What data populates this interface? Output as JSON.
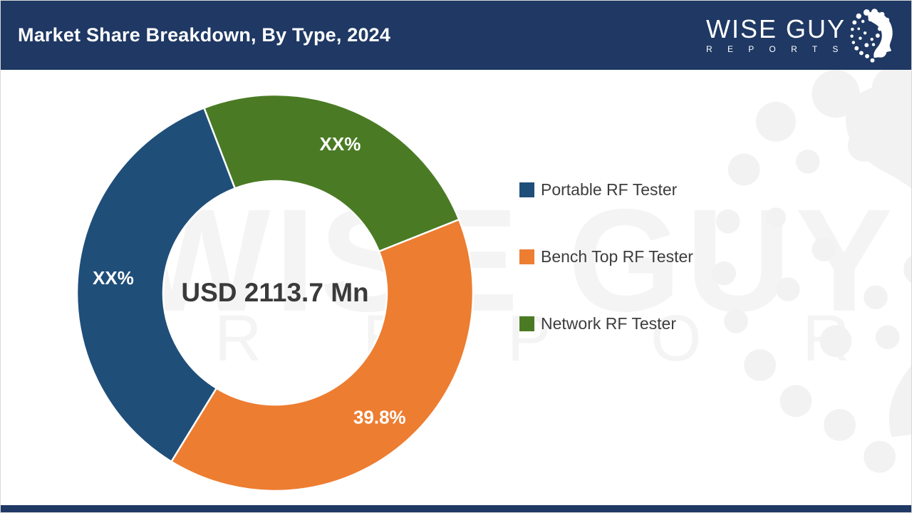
{
  "header": {
    "title": "Market Share Breakdown, By Type, 2024",
    "logo": {
      "line1": "WISE GUY",
      "line2": "R E P O R T S"
    }
  },
  "watermark": {
    "line1": "WISE GUY",
    "line2": "R E P O R T S"
  },
  "chart_data": {
    "type": "donut",
    "title": "Market Share Breakdown, By Type, 2024",
    "center_label": "USD 2113.7 Mn",
    "start_angle_deg": -21,
    "segments": [
      {
        "name": "Network RF Tester",
        "share_pct_est": 24.8,
        "label": "XX%",
        "color": "#4A7B24"
      },
      {
        "name": "Bench Top RF Tester",
        "share_pct_est": 39.8,
        "label": "39.8%",
        "color": "#ED7D31"
      },
      {
        "name": "Portable RF Tester",
        "share_pct_est": 35.4,
        "label": "XX%",
        "color": "#1F4E79"
      }
    ],
    "legend": [
      {
        "label": "Portable RF Tester",
        "color": "#1F4E79"
      },
      {
        "label": "Bench Top RF Tester",
        "color": "#ED7D31"
      },
      {
        "label": "Network RF Tester",
        "color": "#4A7B24"
      }
    ],
    "legend_position": "right"
  },
  "colors": {
    "header_bg": "#1F3864",
    "footer_bg": "#1F3864",
    "center_text": "#3A3A3A",
    "watermark": "#f4f4f4"
  }
}
